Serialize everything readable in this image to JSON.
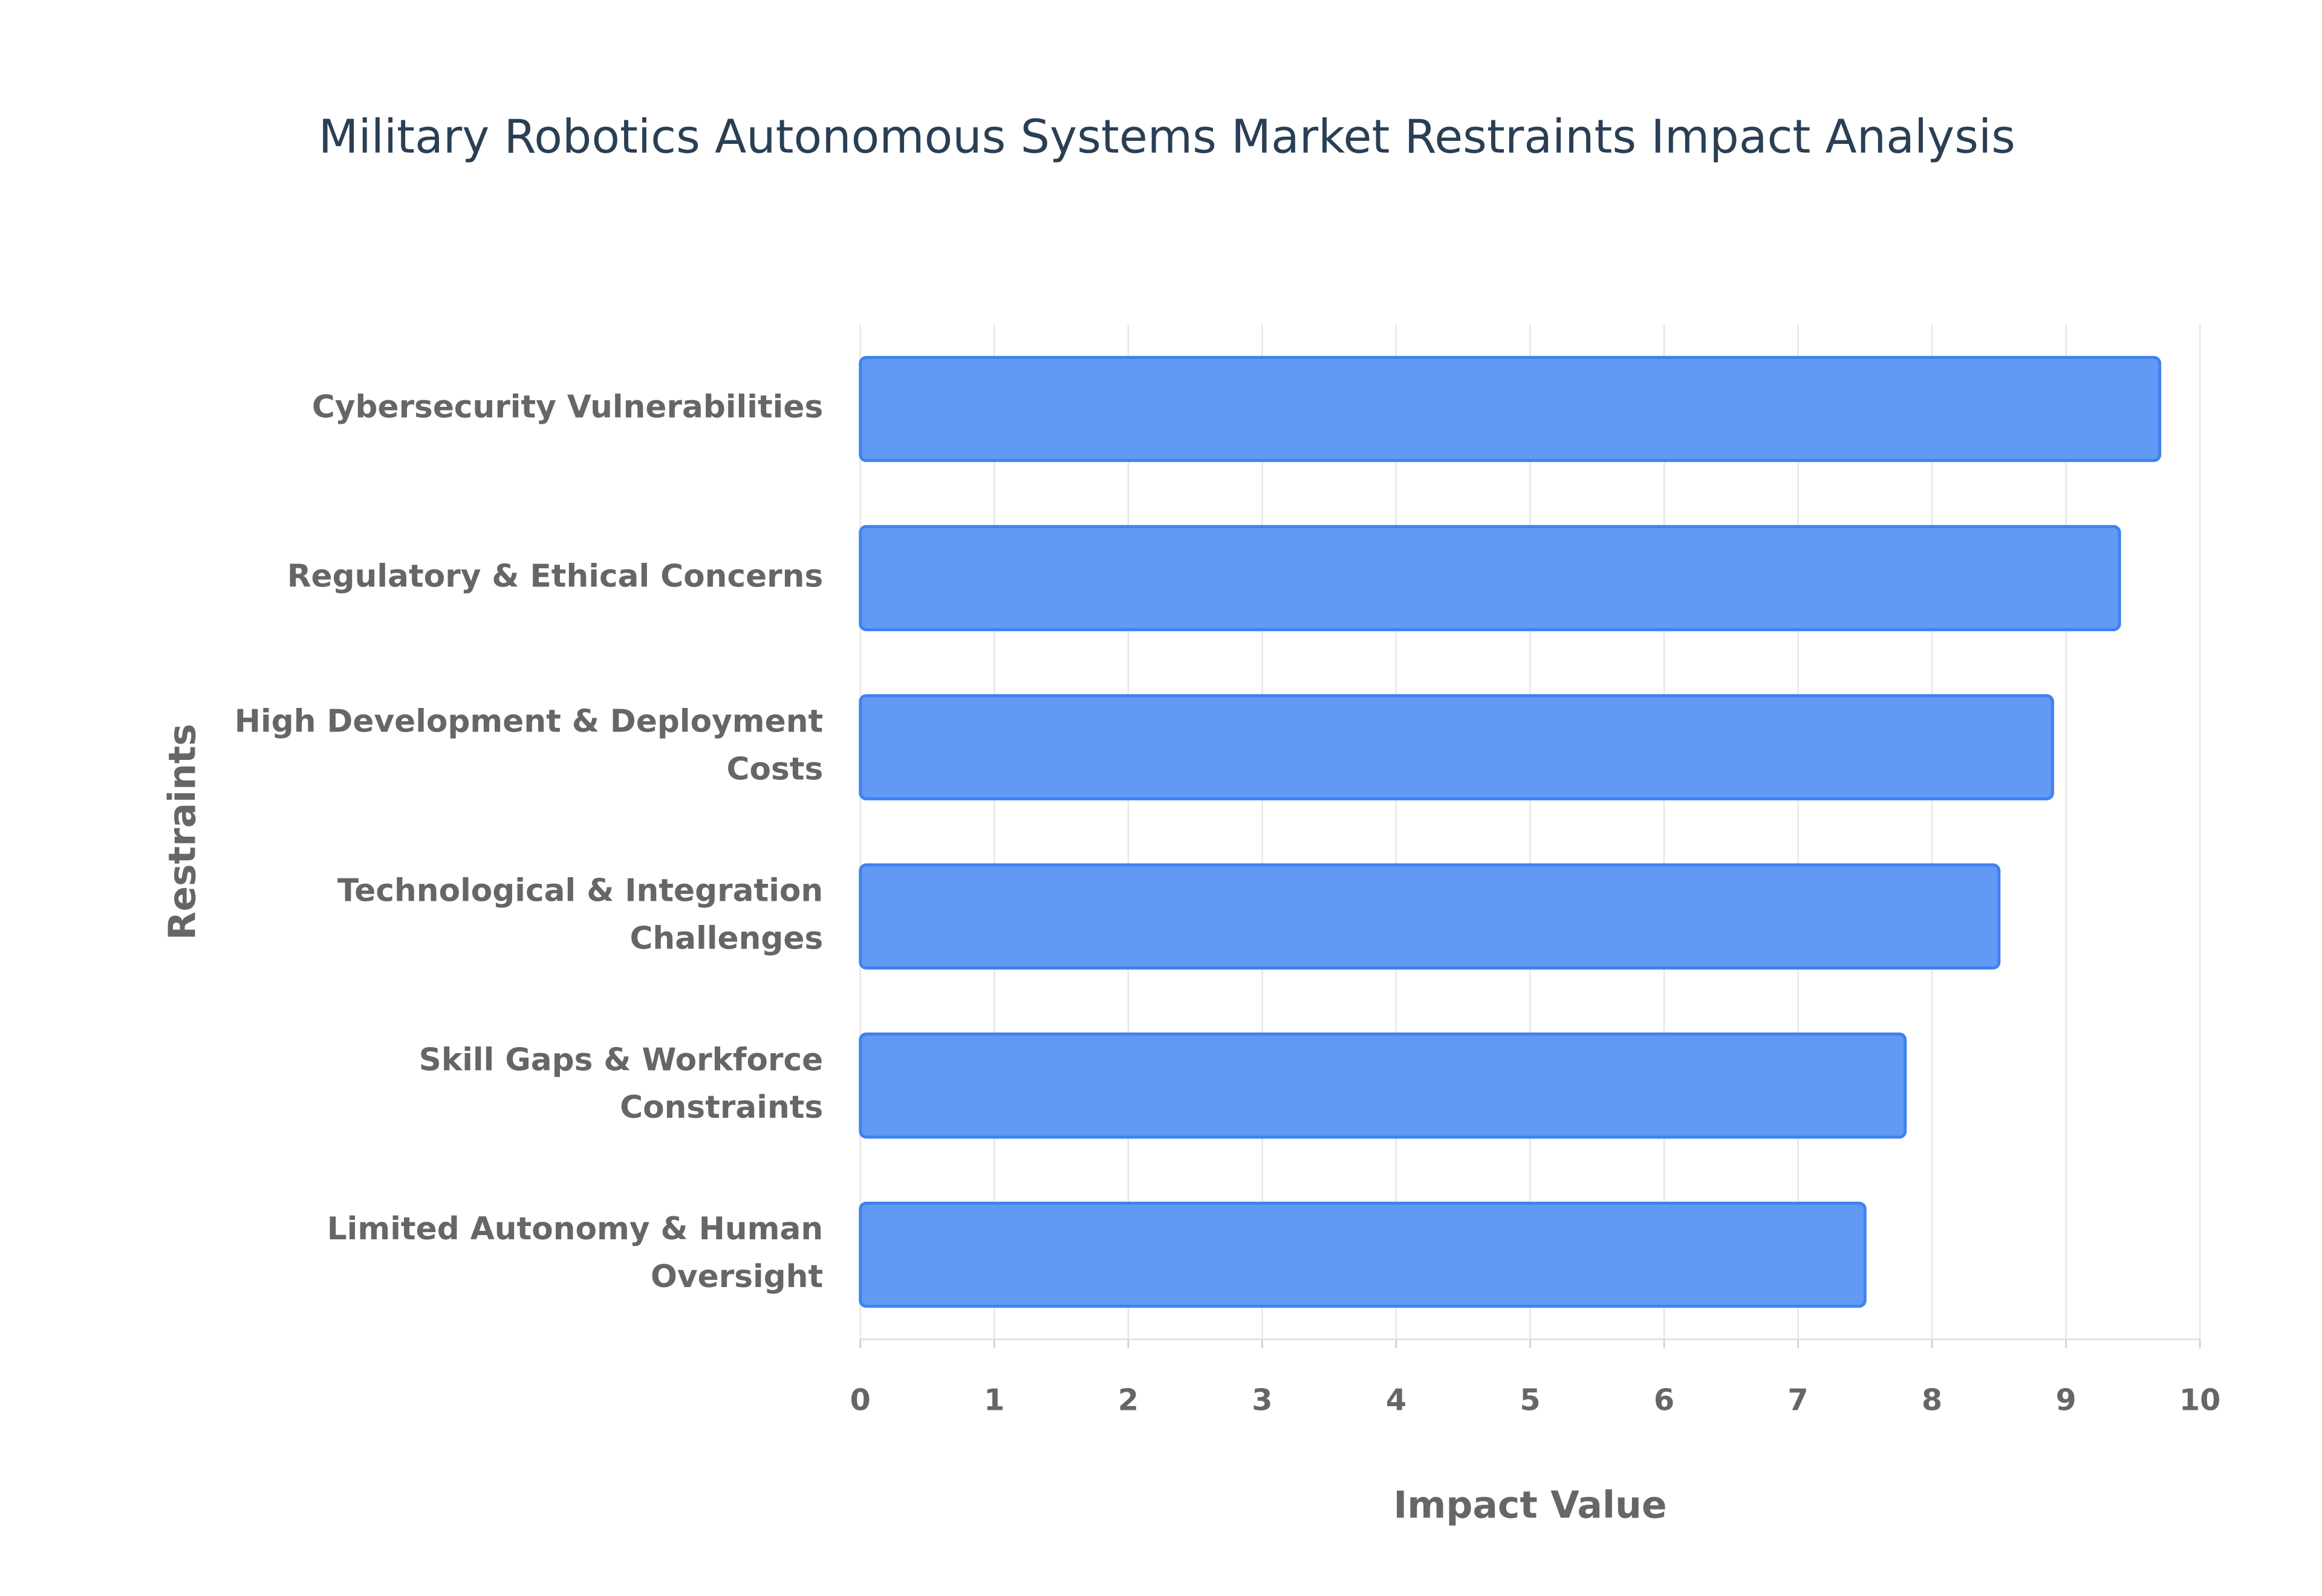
{
  "chart_data": {
    "type": "bar",
    "orientation": "horizontal",
    "title": "Military Robotics Autonomous Systems Market Restraints Impact Analysis",
    "x_label": "Impact Value",
    "y_label": "Restraints",
    "categories": [
      "Cybersecurity Vulnerabilities",
      "Regulatory & Ethical Concerns",
      "High Development & Deployment Costs",
      "Technological & Integration Challenges",
      "Skill Gaps & Workforce Constraints",
      "Limited Autonomy & Human Oversight"
    ],
    "values": [
      9.7,
      9.4,
      8.9,
      8.5,
      7.8,
      7.5
    ],
    "color": "#6199f5",
    "xlim": [
      0,
      10
    ],
    "xticks": [
      0,
      1,
      2,
      3,
      4,
      5,
      6,
      7,
      8,
      9,
      10
    ],
    "grid": true
  }
}
